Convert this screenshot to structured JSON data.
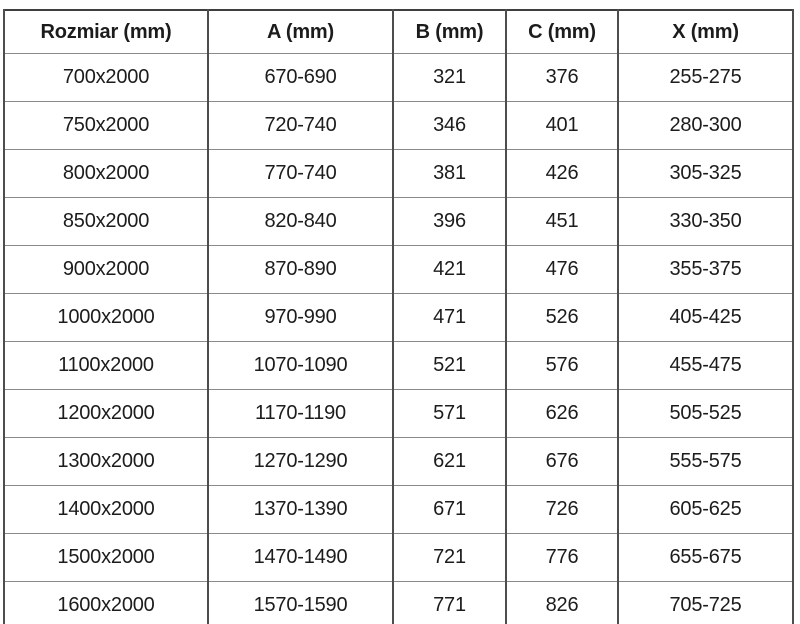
{
  "colors": {
    "background": "#ffffff",
    "text": "#1c1c1c",
    "outer_border": "#3f3f3f",
    "vertical_border": "#4d4d4d",
    "horizontal_border": "#8a8a8a"
  },
  "chart_data": {
    "type": "table",
    "title": "",
    "columns": [
      "Rozmiar (mm)",
      "A (mm)",
      "B (mm)",
      "C (mm)",
      "X (mm)"
    ],
    "column_keys": [
      "rozmiar",
      "a",
      "b",
      "c",
      "x"
    ],
    "rows": [
      [
        "700x2000",
        "670-690",
        "321",
        "376",
        "255-275"
      ],
      [
        "750x2000",
        "720-740",
        "346",
        "401",
        "280-300"
      ],
      [
        "800x2000",
        "770-740",
        "381",
        "426",
        "305-325"
      ],
      [
        "850x2000",
        "820-840",
        "396",
        "451",
        "330-350"
      ],
      [
        "900x2000",
        "870-890",
        "421",
        "476",
        "355-375"
      ],
      [
        "1000x2000",
        "970-990",
        "471",
        "526",
        "405-425"
      ],
      [
        "1100x2000",
        "1070-1090",
        "521",
        "576",
        "455-475"
      ],
      [
        "1200x2000",
        "1170-1190",
        "571",
        "626",
        "505-525"
      ],
      [
        "1300x2000",
        "1270-1290",
        "621",
        "676",
        "555-575"
      ],
      [
        "1400x2000",
        "1370-1390",
        "671",
        "726",
        "605-625"
      ],
      [
        "1500x2000",
        "1470-1490",
        "721",
        "776",
        "655-675"
      ],
      [
        "1600x2000",
        "1570-1590",
        "771",
        "826",
        "705-725"
      ]
    ]
  }
}
